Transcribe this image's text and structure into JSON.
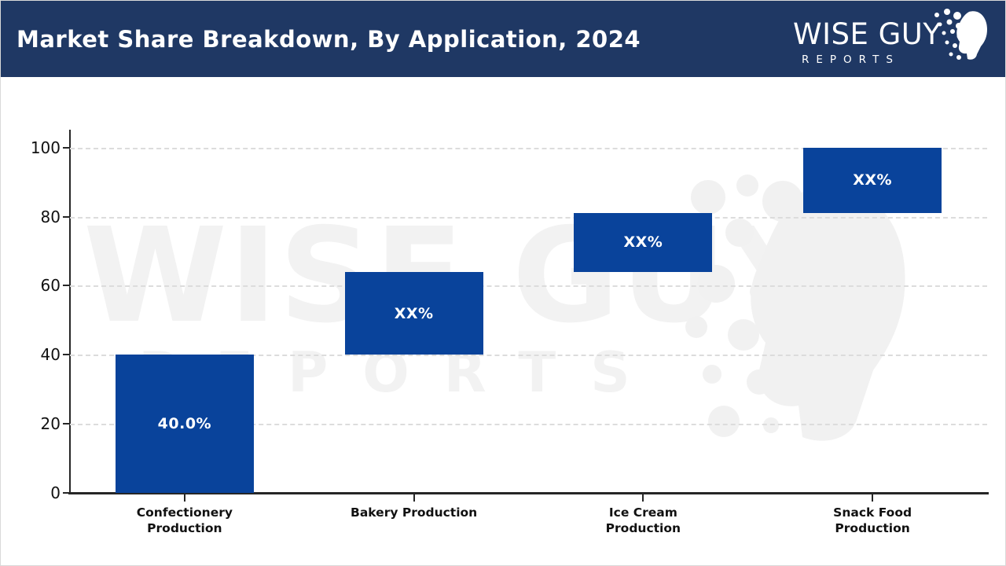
{
  "header": {
    "title": "Market Share Breakdown, By Application, 2024",
    "background_color": "#1f3864",
    "brand": {
      "line1": "WISE GUY",
      "line2": "REPORTS"
    }
  },
  "watermark": {
    "line1": "WISE GUY",
    "line2": "REPORTS"
  },
  "chart_data": {
    "type": "bar",
    "subtype": "floating-waterfall",
    "title": "Market Share Breakdown, By Application, 2024",
    "categories": [
      "Confectionery\nProduction",
      "Bakery Production",
      "Ice Cream\nProduction",
      "Snack Food\nProduction"
    ],
    "segments": [
      {
        "category": "Confectionery Production",
        "start": 0,
        "end": 40,
        "value": 40,
        "label": "40.0%"
      },
      {
        "category": "Bakery Production",
        "start": 40,
        "end": 64,
        "value": 24,
        "label": "XX%"
      },
      {
        "category": "Ice Cream Production",
        "start": 64,
        "end": 81,
        "value": 17,
        "label": "XX%"
      },
      {
        "category": "Snack Food Production",
        "start": 81,
        "end": 100,
        "value": 19,
        "label": "XX%"
      }
    ],
    "xlabel": "",
    "ylabel": "",
    "yticks": [
      0,
      20,
      40,
      60,
      80,
      100
    ],
    "ylim": [
      0,
      100
    ],
    "grid": "horizontal-dashed",
    "legend": "none",
    "bar_color": "#09439b",
    "bar_label_color": "#ffffff",
    "axis_color": "#262626",
    "gridline_color": "#dcdcdc"
  }
}
